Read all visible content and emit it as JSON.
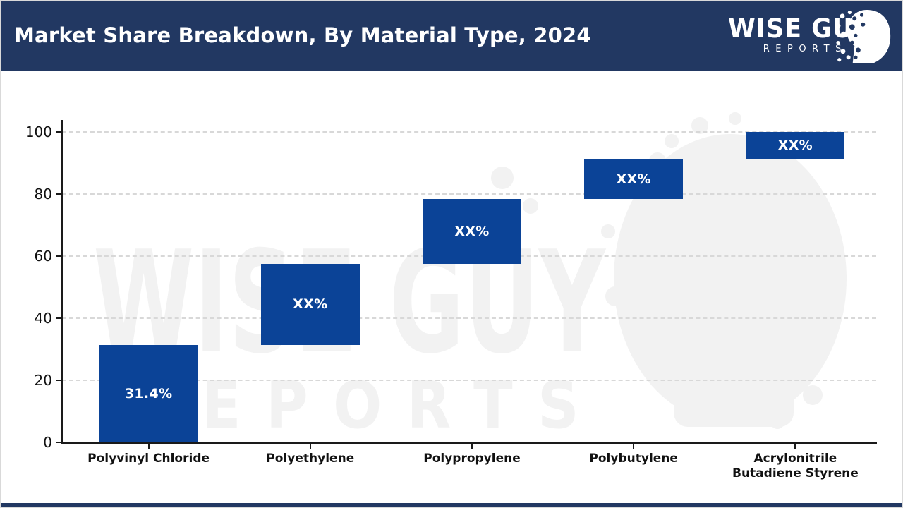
{
  "header": {
    "title": "Market Share Breakdown, By Material Type, 2024",
    "logo": {
      "line1": "WISE GUY",
      "line2": "REPORTS"
    }
  },
  "watermark": {
    "line1": "WISE GUY",
    "line2": "REPORTS"
  },
  "colors": {
    "header_bg": "#223862",
    "bar": "#0b4397",
    "bar_label": "#ffffff",
    "grid": "#d8d8d8",
    "axis": "#1a1a1a",
    "watermark": "#f2f2f2"
  },
  "chart_data": {
    "type": "bar",
    "subtype": "waterfall",
    "title": "Market Share Breakdown, By Material Type, 2024",
    "xlabel": "",
    "ylabel": "",
    "ylim": [
      0,
      100
    ],
    "yticks": [
      0,
      20,
      40,
      60,
      80,
      100
    ],
    "grid": "horizontal-dashed",
    "legend": "none",
    "categories": [
      "Polyvinyl Chloride",
      "Polyethylene",
      "Polypropylene",
      "Polybutylene",
      "Acrylonitrile Butadiene Styrene"
    ],
    "values": [
      31.4,
      26.1,
      20.9,
      12.9,
      8.7
    ],
    "cumulative_start": [
      0,
      31.4,
      57.5,
      78.4,
      91.3
    ],
    "cumulative_end": [
      31.4,
      57.5,
      78.4,
      91.3,
      100
    ],
    "bar_labels": [
      "31.4%",
      "XX%",
      "XX%",
      "XX%",
      "XX%"
    ]
  }
}
